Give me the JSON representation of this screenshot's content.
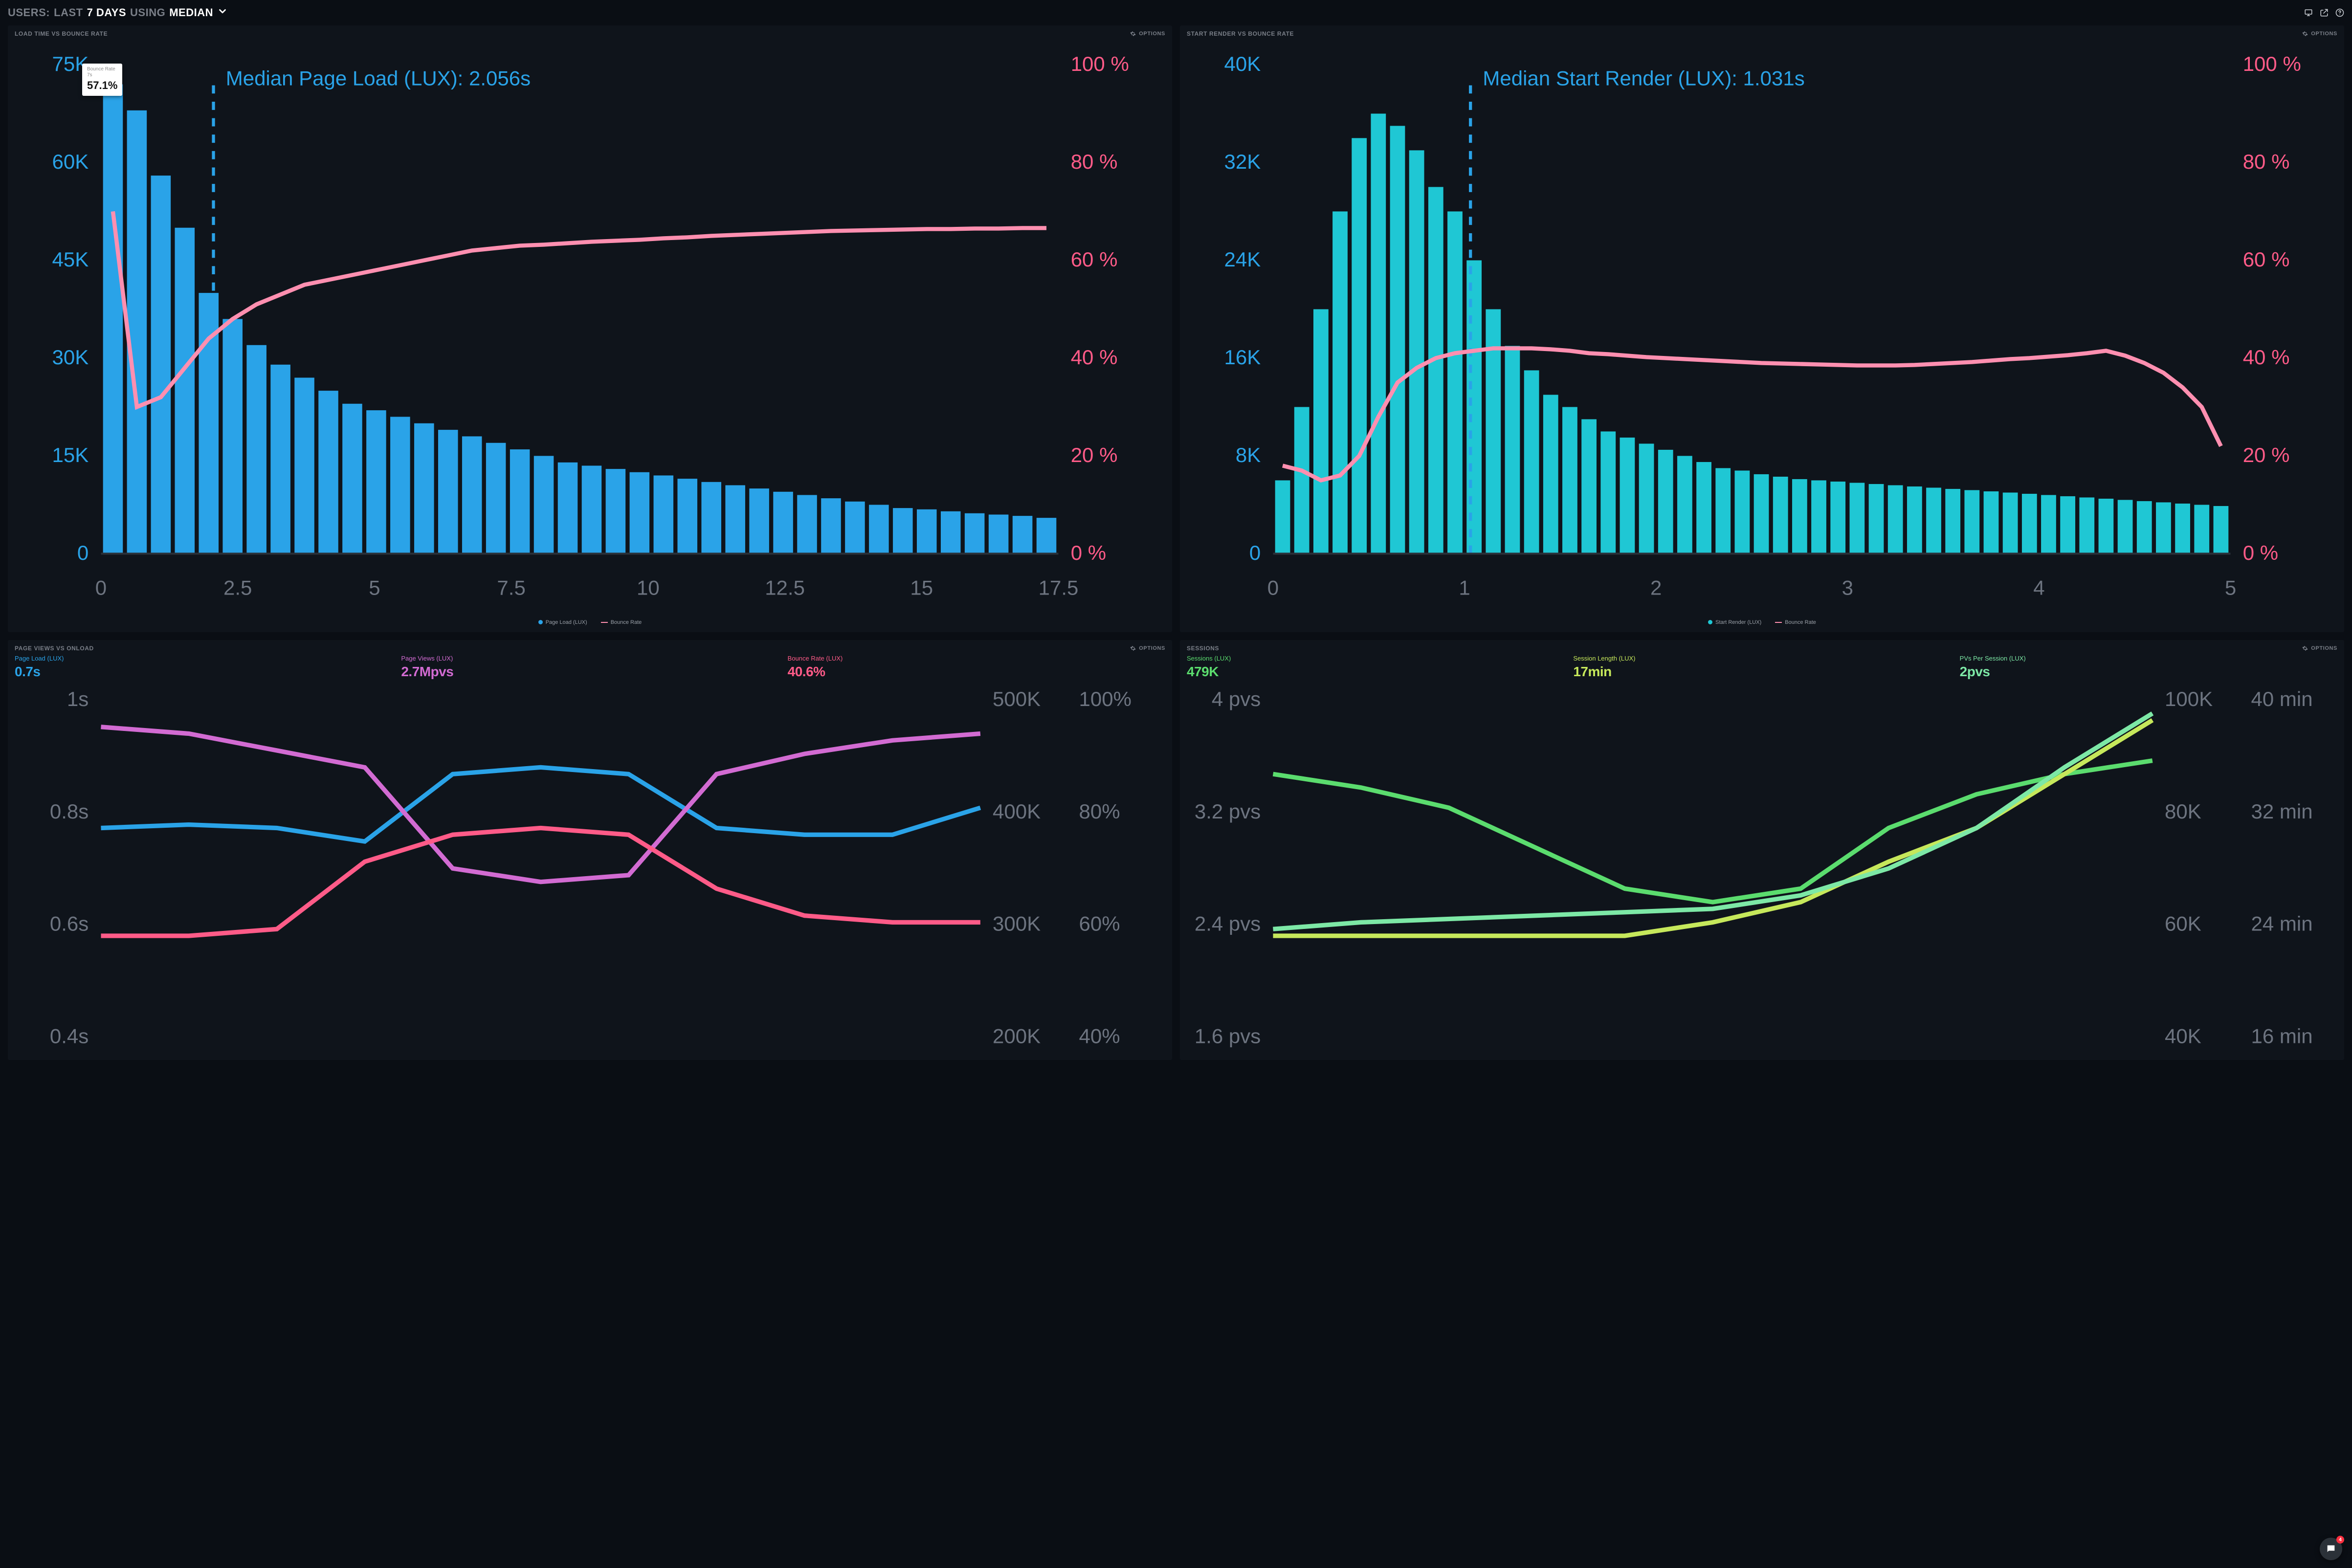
{
  "header": {
    "prefix": "USERS:",
    "range_dim1": "LAST",
    "range_bold": "7 DAYS",
    "using_dim": "USING",
    "agg_bold": "MEDIAN"
  },
  "options_label": "OPTIONS",
  "colors": {
    "bar": "#2aa3e8",
    "bar_cyan": "#1fc7d4",
    "line_pink": "#ff8fb0",
    "axis_left": "#2aa3e8",
    "axis_right_pink": "#ff5b88",
    "axis_dim": "#6d7480",
    "median_line": "#2aa3e8",
    "panel_bg": "#0f141b",
    "blue": "#2aa3e8",
    "magenta": "#d26bd2",
    "pink": "#ff5b88",
    "green": "#5bdc6e",
    "lime": "#c6e85b",
    "mint": "#7de8a6"
  },
  "panel1": {
    "title": "LOAD TIME VS BOUNCE RATE",
    "median_label": "Median Page Load (LUX): 2.056s",
    "tooltip": {
      "title": "Bounce Rate",
      "sub": "7s",
      "value": "57.1%"
    },
    "y_left": {
      "max": 75,
      "step": 15,
      "unit": "K",
      "ticks": [
        "75K",
        "60K",
        "45K",
        "30K",
        "15K",
        "0"
      ]
    },
    "y_right": {
      "max": 100,
      "step": 20,
      "unit": "%",
      "ticks": [
        "100 %",
        "80 %",
        "60 %",
        "40 %",
        "20 %",
        "0 %"
      ]
    },
    "x_ticks": [
      "0",
      "2.5",
      "5",
      "7.5",
      "10",
      "12.5",
      "15",
      "17.5"
    ],
    "median_x": 2.056,
    "bars": [
      72,
      68,
      58,
      50,
      40,
      36,
      32,
      29,
      27,
      25,
      23,
      22,
      21,
      20,
      19,
      18,
      17,
      16,
      15,
      14,
      13.5,
      13,
      12.5,
      12,
      11.5,
      11,
      10.5,
      10,
      9.5,
      9,
      8.5,
      8,
      7.5,
      7,
      6.8,
      6.5,
      6.2,
      6,
      5.8,
      5.5
    ],
    "bounce": [
      70,
      30,
      32,
      38,
      44,
      48,
      51,
      53,
      55,
      56,
      57,
      58,
      59,
      60,
      61,
      62,
      62.5,
      63,
      63.2,
      63.5,
      63.8,
      64,
      64.2,
      64.5,
      64.7,
      65,
      65.2,
      65.4,
      65.6,
      65.8,
      66,
      66.1,
      66.2,
      66.3,
      66.4,
      66.4,
      66.5,
      66.5,
      66.6,
      66.6
    ],
    "legend": [
      {
        "type": "dot",
        "color": "#2aa3e8",
        "label": "Page Load (LUX)"
      },
      {
        "type": "dash",
        "color": "#ff8fb0",
        "label": "Bounce Rate"
      }
    ]
  },
  "panel2": {
    "title": "START RENDER VS BOUNCE RATE",
    "median_label": "Median Start Render (LUX): 1.031s",
    "y_left": {
      "ticks": [
        "40K",
        "32K",
        "24K",
        "16K",
        "8K",
        "0"
      ],
      "max": 40
    },
    "y_right": {
      "ticks": [
        "100 %",
        "80 %",
        "60 %",
        "40 %",
        "20 %",
        "0 %"
      ]
    },
    "x_ticks": [
      "0",
      "1",
      "2",
      "3",
      "4",
      "5"
    ],
    "median_x": 1.031,
    "bars": [
      6,
      12,
      20,
      28,
      34,
      36,
      35,
      33,
      30,
      28,
      24,
      20,
      17,
      15,
      13,
      12,
      11,
      10,
      9.5,
      9,
      8.5,
      8,
      7.5,
      7,
      6.8,
      6.5,
      6.3,
      6.1,
      6,
      5.9,
      5.8,
      5.7,
      5.6,
      5.5,
      5.4,
      5.3,
      5.2,
      5.1,
      5,
      4.9,
      4.8,
      4.7,
      4.6,
      4.5,
      4.4,
      4.3,
      4.2,
      4.1,
      4,
      3.9
    ],
    "bounce": [
      18,
      17,
      15,
      16,
      20,
      28,
      35,
      38,
      40,
      41,
      41.5,
      42,
      42,
      42,
      41.8,
      41.5,
      41,
      40.8,
      40.5,
      40.2,
      40,
      39.8,
      39.6,
      39.4,
      39.2,
      39,
      38.9,
      38.8,
      38.7,
      38.6,
      38.5,
      38.5,
      38.5,
      38.6,
      38.8,
      39,
      39.2,
      39.5,
      39.8,
      40,
      40.3,
      40.6,
      41,
      41.5,
      40.5,
      39,
      37,
      34,
      30,
      22
    ],
    "legend": [
      {
        "type": "dot",
        "color": "#1fc7d4",
        "label": "Start Render (LUX)"
      },
      {
        "type": "dash",
        "color": "#ff8fb0",
        "label": "Bounce Rate"
      }
    ]
  },
  "panel3": {
    "title": "PAGE VIEWS VS ONLOAD",
    "metrics": [
      {
        "label": "Page Load (LUX)",
        "value": "0.7s",
        "color": "#2aa3e8"
      },
      {
        "label": "Page Views (LUX)",
        "value": "2.7Mpvs",
        "color": "#d26bd2"
      },
      {
        "label": "Bounce Rate (LUX)",
        "value": "40.6%",
        "color": "#ff5b88"
      }
    ],
    "y_left_ticks": [
      "1s",
      "0.8s",
      "0.6s",
      "0.4s"
    ],
    "y_right1_ticks": [
      "500K",
      "400K",
      "300K",
      "200K"
    ],
    "y_right2_ticks": [
      "100%",
      "80%",
      "60%",
      "40%"
    ],
    "lines": {
      "blue": [
        0.62,
        0.63,
        0.62,
        0.58,
        0.78,
        0.8,
        0.78,
        0.62,
        0.6,
        0.6,
        0.68
      ],
      "magenta": [
        0.92,
        0.9,
        0.85,
        0.8,
        0.5,
        0.46,
        0.48,
        0.78,
        0.84,
        0.88,
        0.9
      ],
      "pink": [
        0.3,
        0.3,
        0.32,
        0.52,
        0.6,
        0.62,
        0.6,
        0.44,
        0.36,
        0.34,
        0.34
      ]
    }
  },
  "panel4": {
    "title": "SESSIONS",
    "metrics": [
      {
        "label": "Sessions (LUX)",
        "value": "479K",
        "color": "#5bdc6e"
      },
      {
        "label": "Session Length (LUX)",
        "value": "17min",
        "color": "#c6e85b"
      },
      {
        "label": "PVs Per Session (LUX)",
        "value": "2pvs",
        "color": "#7de8a6"
      }
    ],
    "y_left_ticks": [
      "4 pvs",
      "3.2 pvs",
      "2.4 pvs",
      "1.6 pvs"
    ],
    "y_right1_ticks": [
      "100K",
      "80K",
      "60K",
      "40K"
    ],
    "y_right2_ticks": [
      "40 min",
      "32 min",
      "24 min",
      "16 min"
    ],
    "lines": {
      "green": [
        0.78,
        0.74,
        0.68,
        0.56,
        0.44,
        0.4,
        0.44,
        0.62,
        0.72,
        0.78,
        0.82
      ],
      "lime": [
        0.3,
        0.3,
        0.3,
        0.3,
        0.3,
        0.34,
        0.4,
        0.52,
        0.62,
        0.78,
        0.94
      ],
      "mint": [
        0.32,
        0.34,
        0.35,
        0.36,
        0.37,
        0.38,
        0.42,
        0.5,
        0.62,
        0.8,
        0.96
      ]
    }
  },
  "chat_badge": "4",
  "scrub_bar_right": true
}
